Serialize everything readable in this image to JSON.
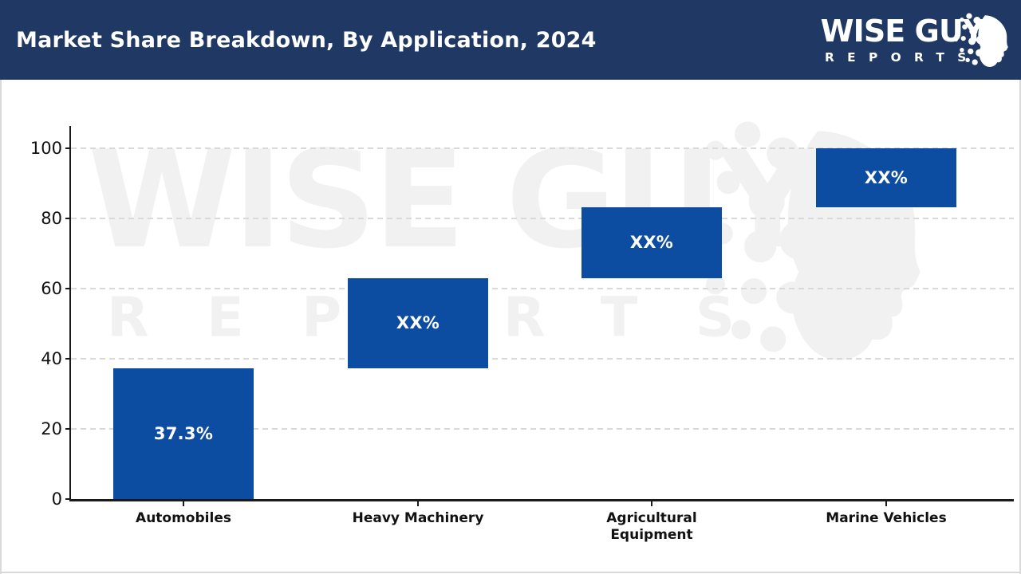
{
  "header": {
    "title": "Market Share Breakdown, By Application, 2024",
    "bg_color": "#1f3864",
    "logo": {
      "line1": "WISE GUY",
      "line2": "REPORTS"
    }
  },
  "watermark": {
    "line1": "WISE GUY",
    "line2": "REPORTS"
  },
  "chart_data": {
    "type": "bar",
    "subtype": "floating-waterfall",
    "title": "Market Share Breakdown, By Application, 2024",
    "xlabel": "",
    "ylabel": "",
    "categories": [
      "Automobiles",
      "Heavy Machinery",
      "Agricultural Equipment",
      "Marine Vehicles"
    ],
    "bars": [
      {
        "category": "Automobiles",
        "start": 0,
        "end": 37.3,
        "label": "37.3%"
      },
      {
        "category": "Heavy Machinery",
        "start": 37.3,
        "end": 63.0,
        "label": "XX%"
      },
      {
        "category": "Agricultural Equipment",
        "start": 63.0,
        "end": 83.2,
        "label": "XX%"
      },
      {
        "category": "Marine Vehicles",
        "start": 83.2,
        "end": 100.0,
        "label": "XX%"
      }
    ],
    "ylim": [
      0,
      100
    ],
    "yticks": [
      0,
      20,
      40,
      60,
      80,
      100
    ],
    "grid": "horizontal-dashed",
    "legend_position": "none",
    "colors": {
      "bar": "#0d4da1",
      "bar_label": "#ffffff",
      "axis": "#1a1a1a",
      "gridline": "#d9d9d9",
      "tick_label": "#111111",
      "header_bg": "#1f3864",
      "watermark": "#f1f1f2"
    }
  }
}
